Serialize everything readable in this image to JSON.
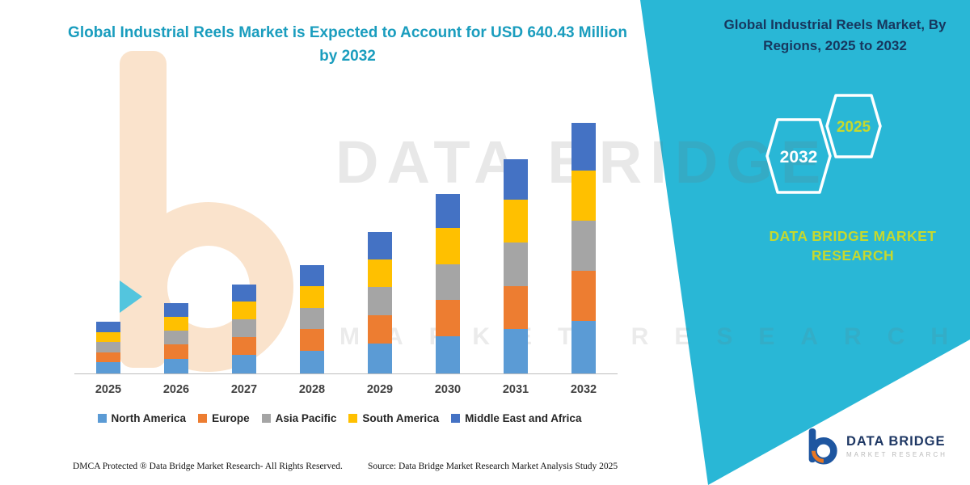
{
  "title": "Global Industrial Reels Market is Expected to Account for USD 640.43 Million by 2032",
  "right_panel": {
    "heading": "Global Industrial Reels Market, By Regions, 2025 to 2032",
    "panel_color": "#29b7d6",
    "accent_color": "#c6d92e",
    "hexagon_labels": [
      "2032",
      "2025"
    ],
    "brand_line1": "DATA BRIDGE MARKET",
    "brand_line2": "RESEARCH"
  },
  "watermark": {
    "line1": "DATA BRIDGE",
    "line2": "MARKET RESEARCH"
  },
  "chart_data": {
    "type": "bar",
    "stacked": true,
    "title": "Global Industrial Reels Market is Expected to Account for USD 640.43 Million by 2032",
    "value_unit": "USD Million",
    "xlabel": "",
    "ylabel": "",
    "grid": false,
    "legend_position": "bottom",
    "categories": [
      "2025",
      "2026",
      "2027",
      "2028",
      "2029",
      "2030",
      "2031",
      "2032"
    ],
    "totals": [
      132,
      180,
      227,
      277,
      362,
      459,
      548,
      640.43
    ],
    "series": [
      {
        "name": "North America",
        "color": "#5b9bd5",
        "values": [
          28,
          38,
          48,
          58,
          76,
          96,
          114,
          134
        ]
      },
      {
        "name": "Europe",
        "color": "#ed7d31",
        "values": [
          26,
          36,
          45,
          55,
          72,
          92,
          110,
          128.43
        ]
      },
      {
        "name": "Asia Pacific",
        "color": "#a5a5a5",
        "values": [
          26,
          36,
          45,
          55,
          72,
          92,
          110,
          128
        ]
      },
      {
        "name": "South America",
        "color": "#ffc000",
        "values": [
          26,
          35,
          45,
          55,
          72,
          92,
          110,
          128
        ]
      },
      {
        "name": "Middle East and Africa",
        "color": "#4472c4",
        "values": [
          26,
          35,
          44,
          54,
          70,
          87,
          104,
          122
        ]
      }
    ]
  },
  "footer": {
    "left": "DMCA Protected ® Data Bridge Market Research- All Rights Reserved.",
    "source": "Source: Data Bridge Market Research Market Analysis Study 2025"
  },
  "logo": {
    "name": "DATA BRIDGE",
    "sub": "MARKET RESEARCH"
  }
}
